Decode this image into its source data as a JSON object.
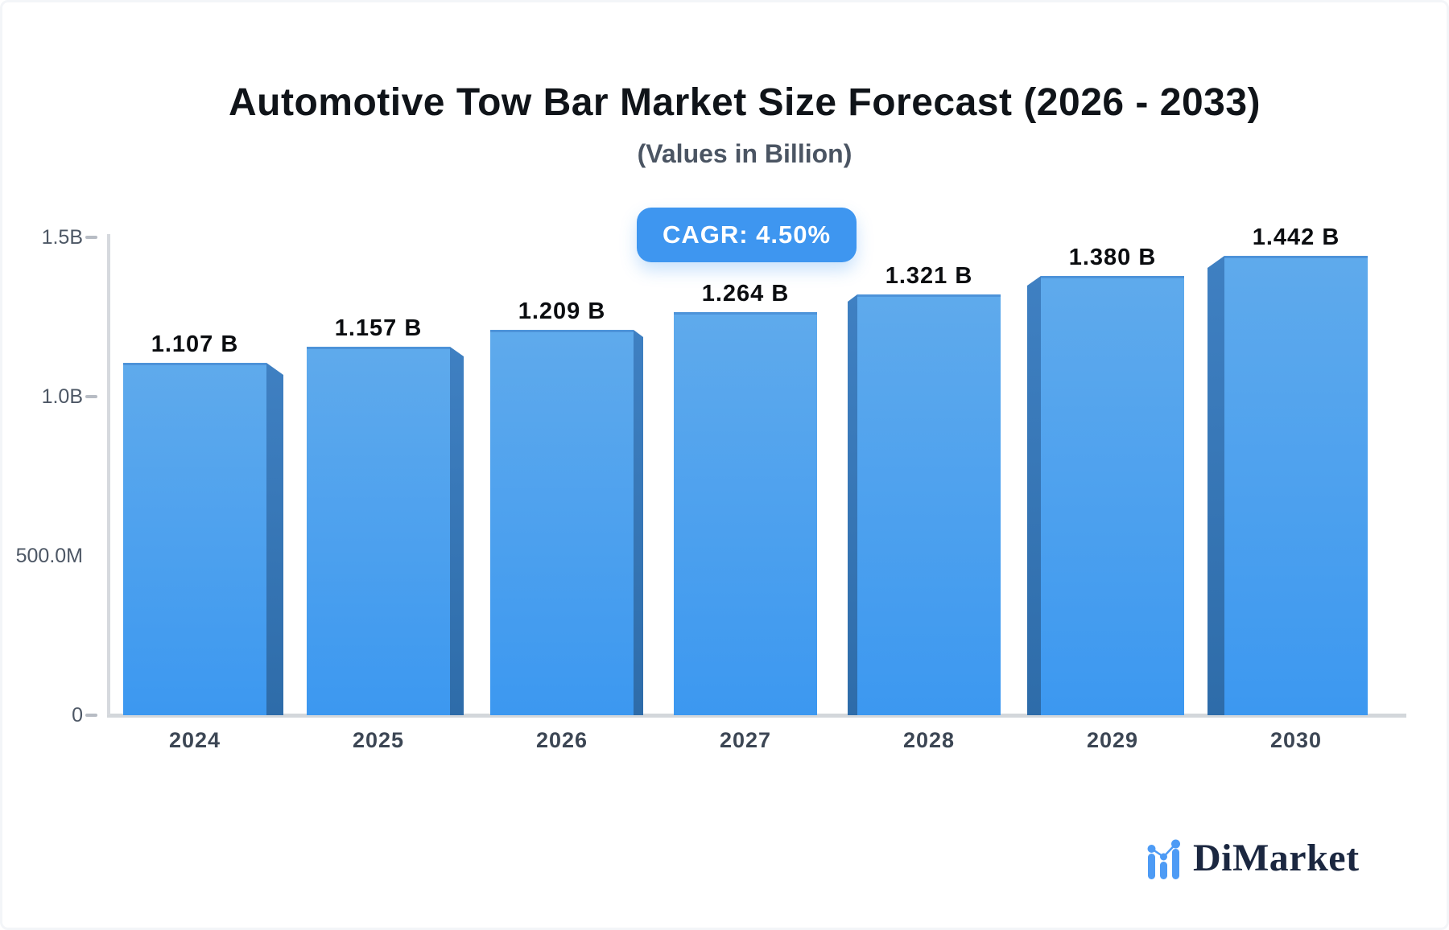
{
  "header": {
    "title": "Automotive Tow Bar Market Size Forecast (2026 - 2033)",
    "subtitle": "(Values in Billion)",
    "cagr_label": "CAGR: 4.50%"
  },
  "brand": {
    "name": "DiMarket"
  },
  "colors": {
    "badge_bg": "#3E96F0",
    "bar_face_top": "#5FAAEC",
    "bar_face_bottom": "#3C98F0",
    "bar_face_edge": "#4D93D9",
    "bar_side_top": "#3F80C2",
    "bar_side_bottom": "#2E6CA9",
    "axis_line": "#D5D8DD",
    "tick_label": "#4D5765",
    "year_label": "#3C4654",
    "value_label": "#0B0D10",
    "brand_icon": "#4D9BF5",
    "brand_text": "#1B2740"
  },
  "chart_data": {
    "type": "bar",
    "style": "3d-perspective-columns",
    "title": "Automotive Tow Bar Market Size Forecast (2026 - 2033)",
    "subtitle": "(Values in Billion)",
    "categories": [
      "2024",
      "2025",
      "2026",
      "2027",
      "2028",
      "2029",
      "2030"
    ],
    "values": [
      1.107,
      1.157,
      1.209,
      1.264,
      1.321,
      1.38,
      1.442
    ],
    "value_labels": [
      "1.107 B",
      "1.157 B",
      "1.209 B",
      "1.264 B",
      "1.321 B",
      "1.380 B",
      "1.442 B"
    ],
    "unit": "Billion",
    "annotations": {
      "cagr": "CAGR: 4.50%"
    },
    "y_axis": {
      "range": [
        0,
        1.5
      ],
      "ticks": [
        {
          "label": "1.5B",
          "value": 1.5,
          "tick_mark": true
        },
        {
          "label": "1.0B",
          "value": 1.0,
          "tick_mark": true
        },
        {
          "label": "500.0M",
          "value": 0.5,
          "tick_mark": false
        },
        {
          "label": "0",
          "value": 0.0,
          "tick_mark": true
        }
      ]
    },
    "gridlines": false,
    "legend": "none"
  }
}
